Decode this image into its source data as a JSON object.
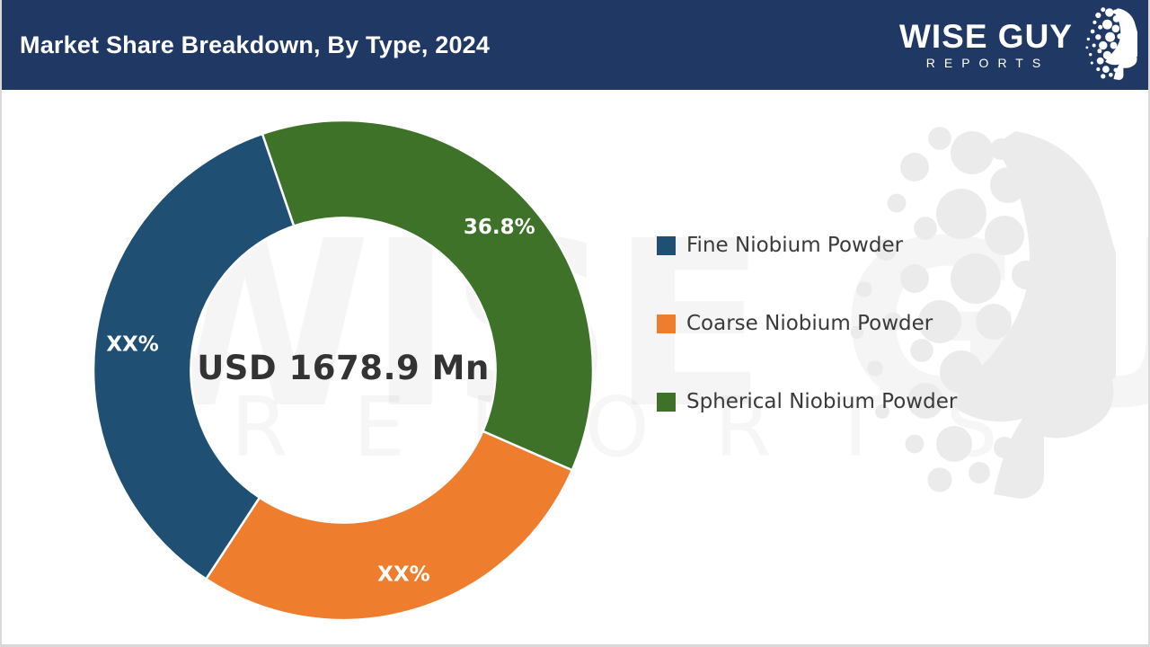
{
  "header": {
    "title": "Market Share Breakdown, By Type, 2024",
    "logo": {
      "line1": "WISE GUY",
      "line2": "REPORTS"
    }
  },
  "watermark": {
    "line1": "WISE GUY",
    "line2": "REPORTS"
  },
  "chart_data": {
    "type": "pie",
    "subtype": "donut",
    "title": "Market Share Breakdown, By Type, 2024",
    "center_label": "USD 1678.9 Mn",
    "legend_position": "right",
    "rotation_deg": -18.9,
    "inner_radius_ratio": 0.61,
    "label_radius_ratio": 0.85,
    "segments": [
      {
        "name": "Fine Niobium Powder",
        "display_label": "XX%",
        "value_pct_est": 35.5,
        "color": "#204F74"
      },
      {
        "name": "Coarse Niobium Powder",
        "display_label": "XX%",
        "value_pct_est": 27.7,
        "color": "#EE7D2E"
      },
      {
        "name": "Spherical Niobium Powder",
        "display_label": "36.8%",
        "value_pct_est": 36.8,
        "color": "#3F7229"
      }
    ],
    "draw_order": [
      2,
      1,
      0
    ]
  },
  "colors": {
    "header_bg": "#203864",
    "center_text": "#333333",
    "legend_text": "#3A3A3A",
    "page_border": "#D9D9D9",
    "segment_divider": "#FFFFFF"
  }
}
